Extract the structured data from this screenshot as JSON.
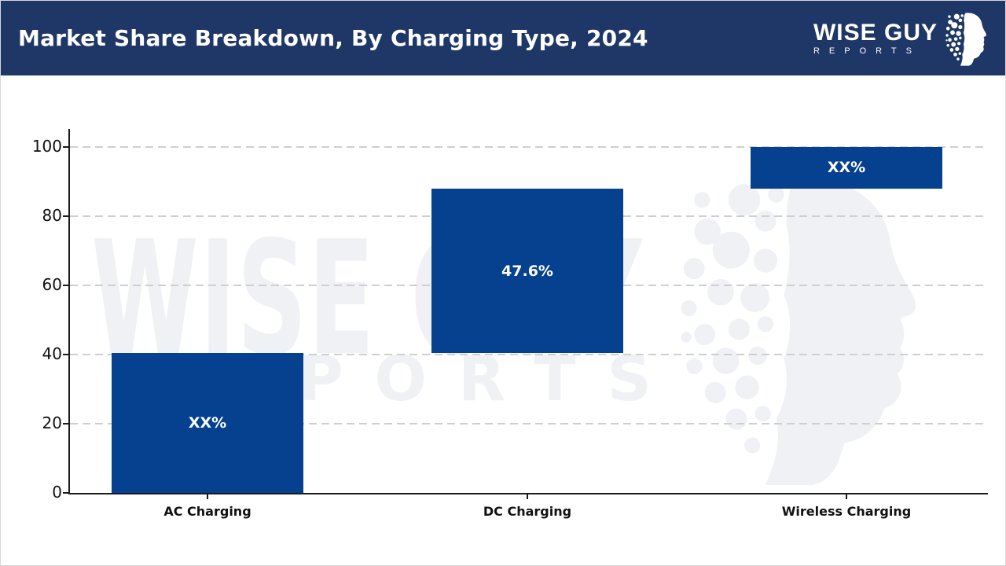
{
  "header": {
    "title": "Market Share Breakdown, By Charging Type, 2024",
    "bg_color": "#1f3766",
    "logo": {
      "line1": "WISE GUY",
      "line2": "REPORTS"
    }
  },
  "watermark": {
    "line1": "WISE GUY",
    "line2": "REPORTS"
  },
  "chart_data": {
    "type": "bar",
    "subtype": "floating-waterfall",
    "title": "Market Share Breakdown, By Charging Type, 2024",
    "categories": [
      "AC Charging",
      "DC Charging",
      "Wireless Charging"
    ],
    "series": [
      {
        "name": "Market share %",
        "base": [
          0,
          40.4,
          88.0
        ],
        "top": [
          40.4,
          88.0,
          100
        ]
      }
    ],
    "bar_labels": [
      "XX%",
      "47.6%",
      "XX%"
    ],
    "yticks": [
      0,
      20,
      40,
      60,
      80,
      100
    ],
    "ylim": [
      0,
      105
    ],
    "xlabel": "",
    "ylabel": "",
    "grid": "dashed-horizontal",
    "legend": "none",
    "bar_color": "#05418e",
    "bar_label_color": "#ffffff",
    "axis_color": "#1a1a1a",
    "gridline_color": "#cfcfcf"
  }
}
